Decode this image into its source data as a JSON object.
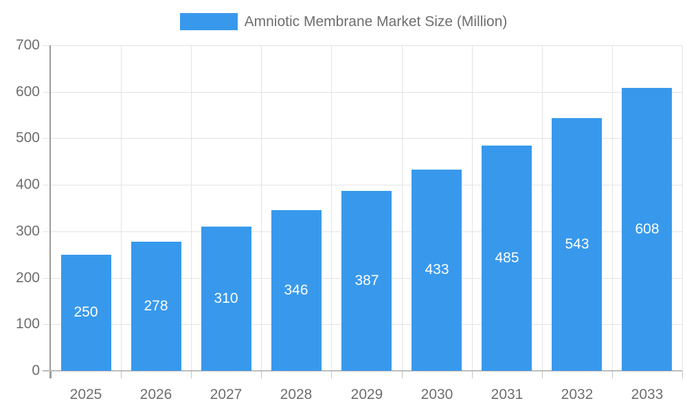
{
  "chart_data": {
    "type": "bar",
    "title": "",
    "legend_label": "Amniotic Membrane Market Size (Million)",
    "legend_position": "top",
    "categories": [
      "2025",
      "2026",
      "2027",
      "2028",
      "2029",
      "2030",
      "2031",
      "2032",
      "2033"
    ],
    "values": [
      250,
      278,
      310,
      346,
      387,
      433,
      485,
      543,
      608
    ],
    "value_labels": [
      "250",
      "278",
      "310",
      "346",
      "387",
      "433",
      "485",
      "543",
      "608"
    ],
    "xlabel": "",
    "ylabel": "",
    "ylim": [
      0,
      700
    ],
    "ytick_interval": 100,
    "ytick_labels": [
      "0",
      "100",
      "200",
      "300",
      "400",
      "500",
      "600",
      "700"
    ],
    "grid": true,
    "colors": {
      "bar": "#3899ec",
      "bar_label_text": "#ffffff",
      "axis_text": "#6e6e6e",
      "legend_text": "#6e6e6e",
      "gridline": "#e3e3e3",
      "y_axis_line": "#9a9a9a",
      "x_axis_line": "#bdbdbd",
      "tick": "#c2c2c2",
      "background": "#ffffff"
    }
  }
}
